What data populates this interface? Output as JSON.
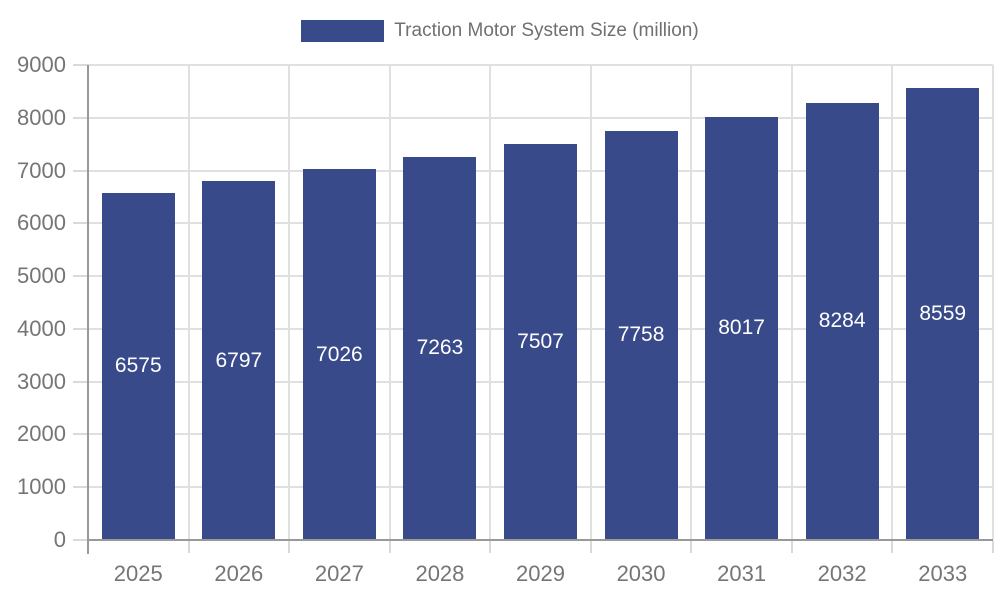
{
  "legend": {
    "label": "Traction Motor System Size (million)",
    "swatch_color": "#394A8B",
    "text_color": "#707070"
  },
  "chart_data": {
    "type": "bar",
    "title": "Traction Motor System Size (million)",
    "categories": [
      "2025",
      "2026",
      "2027",
      "2028",
      "2029",
      "2030",
      "2031",
      "2032",
      "2033"
    ],
    "values": [
      6575,
      6797,
      7026,
      7263,
      7507,
      7758,
      8017,
      8284,
      8559
    ],
    "series": [
      {
        "name": "Traction Motor System Size (million)",
        "values": [
          6575,
          6797,
          7026,
          7263,
          7507,
          7758,
          8017,
          8284,
          8559
        ]
      }
    ],
    "xlabel": "",
    "ylabel": "",
    "ylim": [
      0,
      9000
    ],
    "ytick_step": 1000,
    "ytick_labels": [
      "0",
      "1000",
      "2000",
      "3000",
      "4000",
      "5000",
      "6000",
      "7000",
      "8000",
      "9000"
    ],
    "grid": true,
    "legend_position": "top",
    "value_labels": "inside-center",
    "bar_color": "#394A8B",
    "value_label_color": "#FFFFFF",
    "axis_text_color": "#757575",
    "grid_color": "#E0E0E0",
    "axis_line_color": "#999999",
    "tick_color": "#D9D9D9"
  }
}
